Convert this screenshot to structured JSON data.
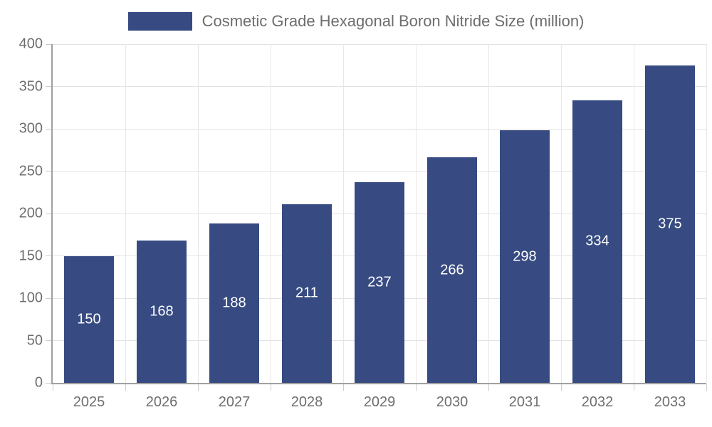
{
  "chart_data": {
    "type": "bar",
    "title": "Cosmetic Grade Hexagonal Boron Nitride Size (million)",
    "categories": [
      "2025",
      "2026",
      "2027",
      "2028",
      "2029",
      "2030",
      "2031",
      "2032",
      "2033"
    ],
    "values": [
      150,
      168,
      188,
      211,
      237,
      266,
      298,
      334,
      375
    ],
    "xlabel": "",
    "ylabel": "",
    "ylim": [
      0,
      400
    ],
    "yticks": [
      0,
      50,
      100,
      150,
      200,
      250,
      300,
      350,
      400
    ],
    "grid": true,
    "legend_position": "top",
    "value_labels": "inside-center",
    "colors": {
      "bar": "#374b82",
      "bar_label_text": "#ffffff",
      "legend_text": "#6d6d6d",
      "axis_text": "#6e6e6e",
      "axis_line": "#a0a0a0",
      "gridline": "#e3e3e3",
      "tick": "#cccccc",
      "background": "#ffffff"
    }
  }
}
